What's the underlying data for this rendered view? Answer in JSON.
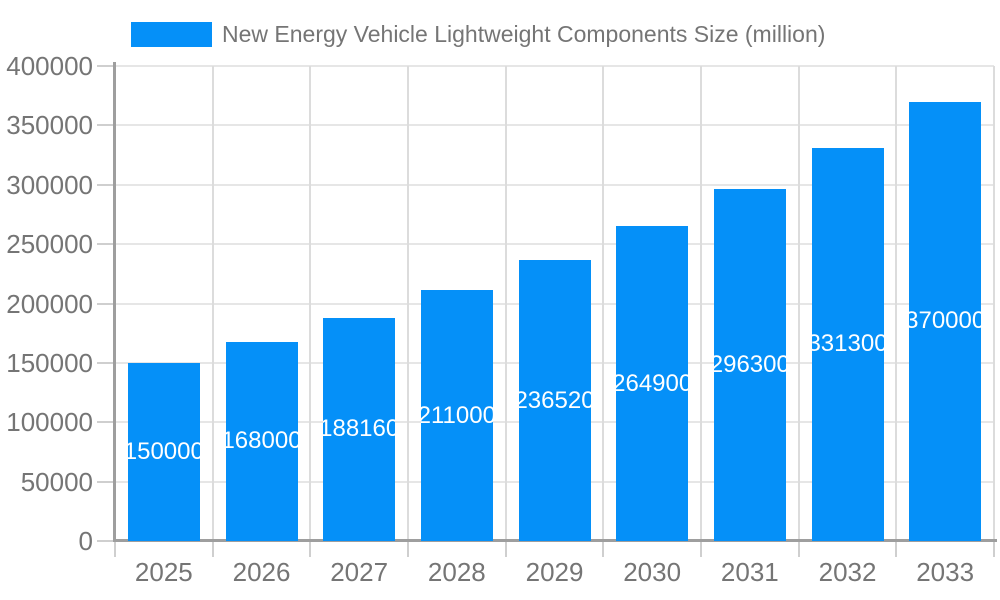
{
  "chart_data": {
    "type": "bar",
    "title": "New Energy Vehicle Lightweight Components Size (million)",
    "legend_position": "top",
    "categories": [
      "2025",
      "2026",
      "2027",
      "2028",
      "2029",
      "2030",
      "2031",
      "2032",
      "2033"
    ],
    "series": [
      {
        "name": "New Energy Vehicle Lightweight Components Size (million)",
        "values": [
          150000,
          168000,
          188160,
          211000,
          236520,
          264900,
          296300,
          331300,
          370000
        ]
      }
    ],
    "bar_value_labels": [
      "150000",
      "168000",
      "188160",
      "211000",
      "236520",
      "264900",
      "296300",
      "331300",
      "370000"
    ],
    "xlabel": "",
    "ylabel": "",
    "ylim": [
      0,
      400000
    ],
    "ytick_step": 50000,
    "ytick_labels": [
      "0",
      "50000",
      "100000",
      "150000",
      "200000",
      "250000",
      "300000",
      "350000",
      "400000"
    ],
    "grid": true,
    "colors": {
      "bar": "#0590f8",
      "text": "#757575",
      "grid_horizontal": "#e6e6e6",
      "grid_vertical": "#dcdcdc",
      "axis": "#9e9e9e",
      "tick": "#cfcfcf",
      "bar_label": "#ffffff",
      "background": "#ffffff"
    }
  }
}
